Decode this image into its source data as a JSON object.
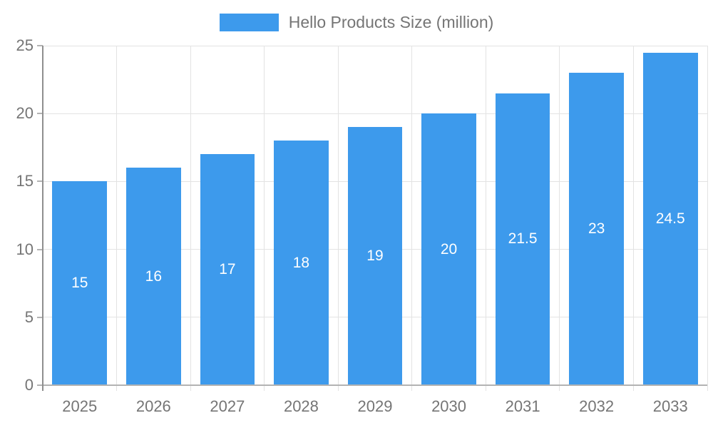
{
  "legend": {
    "label": "Hello Products Size (million)"
  },
  "colors": {
    "bar": "#3d9aec",
    "grid": "#e3e3e3",
    "axis_x": "#b3b3b3",
    "axis_y": "#8f8f8f",
    "tick_text": "#757575",
    "bar_label": "#ffffff",
    "background": "#ffffff"
  },
  "chart_data": {
    "type": "bar",
    "title": "Hello Products Size (million)",
    "categories": [
      "2025",
      "2026",
      "2027",
      "2028",
      "2029",
      "2030",
      "2031",
      "2032",
      "2033"
    ],
    "values": [
      15,
      16,
      17,
      18,
      19,
      20,
      21.5,
      23,
      24.5
    ],
    "bar_labels": [
      "15",
      "16",
      "17",
      "18",
      "19",
      "20",
      "21.5",
      "23",
      "24.5"
    ],
    "xlabel": "",
    "ylabel": "",
    "ylim": [
      0,
      25
    ],
    "yticks": [
      0,
      5,
      10,
      15,
      20,
      25
    ],
    "grid": true,
    "legend_position": "top-center",
    "bar_labels_inside": true
  }
}
